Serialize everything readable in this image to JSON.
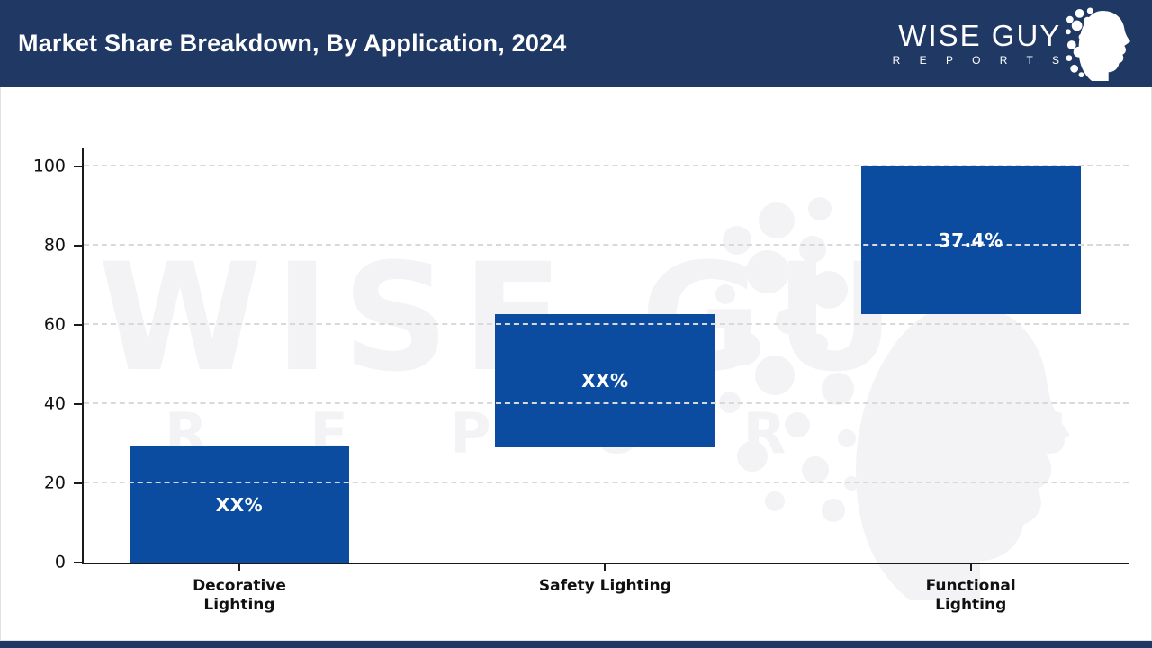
{
  "header": {
    "title": "Market Share Breakdown, By Application, 2024",
    "logo_line1": "WISE GUY",
    "logo_line2": "R E P O R T S"
  },
  "watermark": {
    "line1": "WISE GUY",
    "line2": "R E P O R T S"
  },
  "colors": {
    "header_bg": "#1f3864",
    "footer_bg": "#1f3864",
    "bar_blue": "#0b4ca0",
    "axis": "#1a1a1a",
    "gridline": "#d9d9d9",
    "watermark": "#f3f3f6"
  },
  "chart_data": {
    "type": "bar",
    "variant": "floating-waterfall",
    "title": "Market Share Breakdown, By Application, 2024",
    "categories": [
      "Decorative Lighting",
      "Safety Lighting",
      "Functional Lighting"
    ],
    "category_label_lines": [
      [
        "Decorative",
        "Lighting"
      ],
      [
        "Safety Lighting"
      ],
      [
        "Functional",
        "Lighting"
      ]
    ],
    "series": [
      {
        "name": "Market Share (%)",
        "segments": [
          {
            "category": "Decorative Lighting",
            "start": 0,
            "end": 29.2,
            "label": "XX%"
          },
          {
            "category": "Safety Lighting",
            "start": 29.1,
            "end": 62.6,
            "label": "XX%"
          },
          {
            "category": "Functional Lighting",
            "start": 62.6,
            "end": 100,
            "label": "37.4%"
          }
        ]
      }
    ],
    "xlabel": "",
    "ylabel": "",
    "yticks": [
      0,
      20,
      40,
      60,
      80,
      100
    ],
    "ylim": [
      0,
      104.5
    ],
    "grid": {
      "horizontal": true,
      "style": "dashed",
      "drawn_over_bars": true
    },
    "bar_color": "#0b4ca0",
    "bar_label_color": "#ffffff",
    "legend_position": "none"
  }
}
